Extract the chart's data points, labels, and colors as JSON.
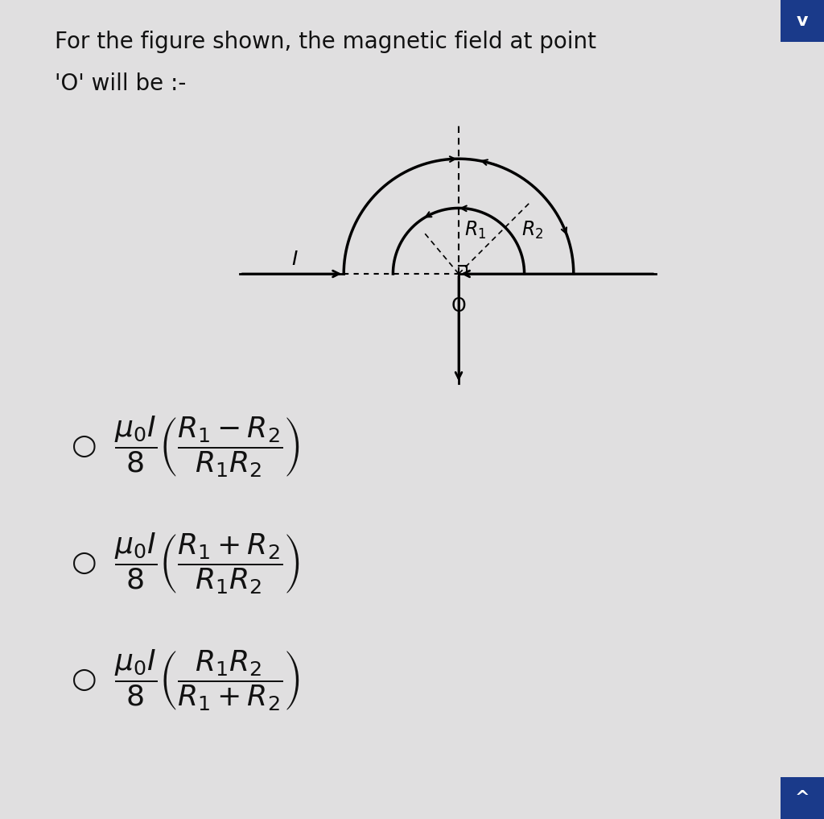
{
  "background_color": "#d8d8d8",
  "inner_bg_color": "#e8e8e8",
  "title_line1": "For the figure shown, the magnetic field at point",
  "title_line2": "'O' will be :-",
  "title_fontsize": 20,
  "title_color": "#111111",
  "option1_num": "\\mu_0 I",
  "option1_frac": "R_1 - R_2",
  "option1_den": "R_1 R_2",
  "option2_frac": "R_1 + R_2",
  "option2_den": "R_1 R_2",
  "option3_frac": "R_1 R_2",
  "option3_den": "R_1 + R_2",
  "options_fontsize": 26,
  "R1": 0.12,
  "R2": 0.21,
  "fig_width": 10.24,
  "fig_height": 10.17,
  "badge_color": "#1a3a8a",
  "badge_top_text": "v",
  "badge_bot_text": "^"
}
